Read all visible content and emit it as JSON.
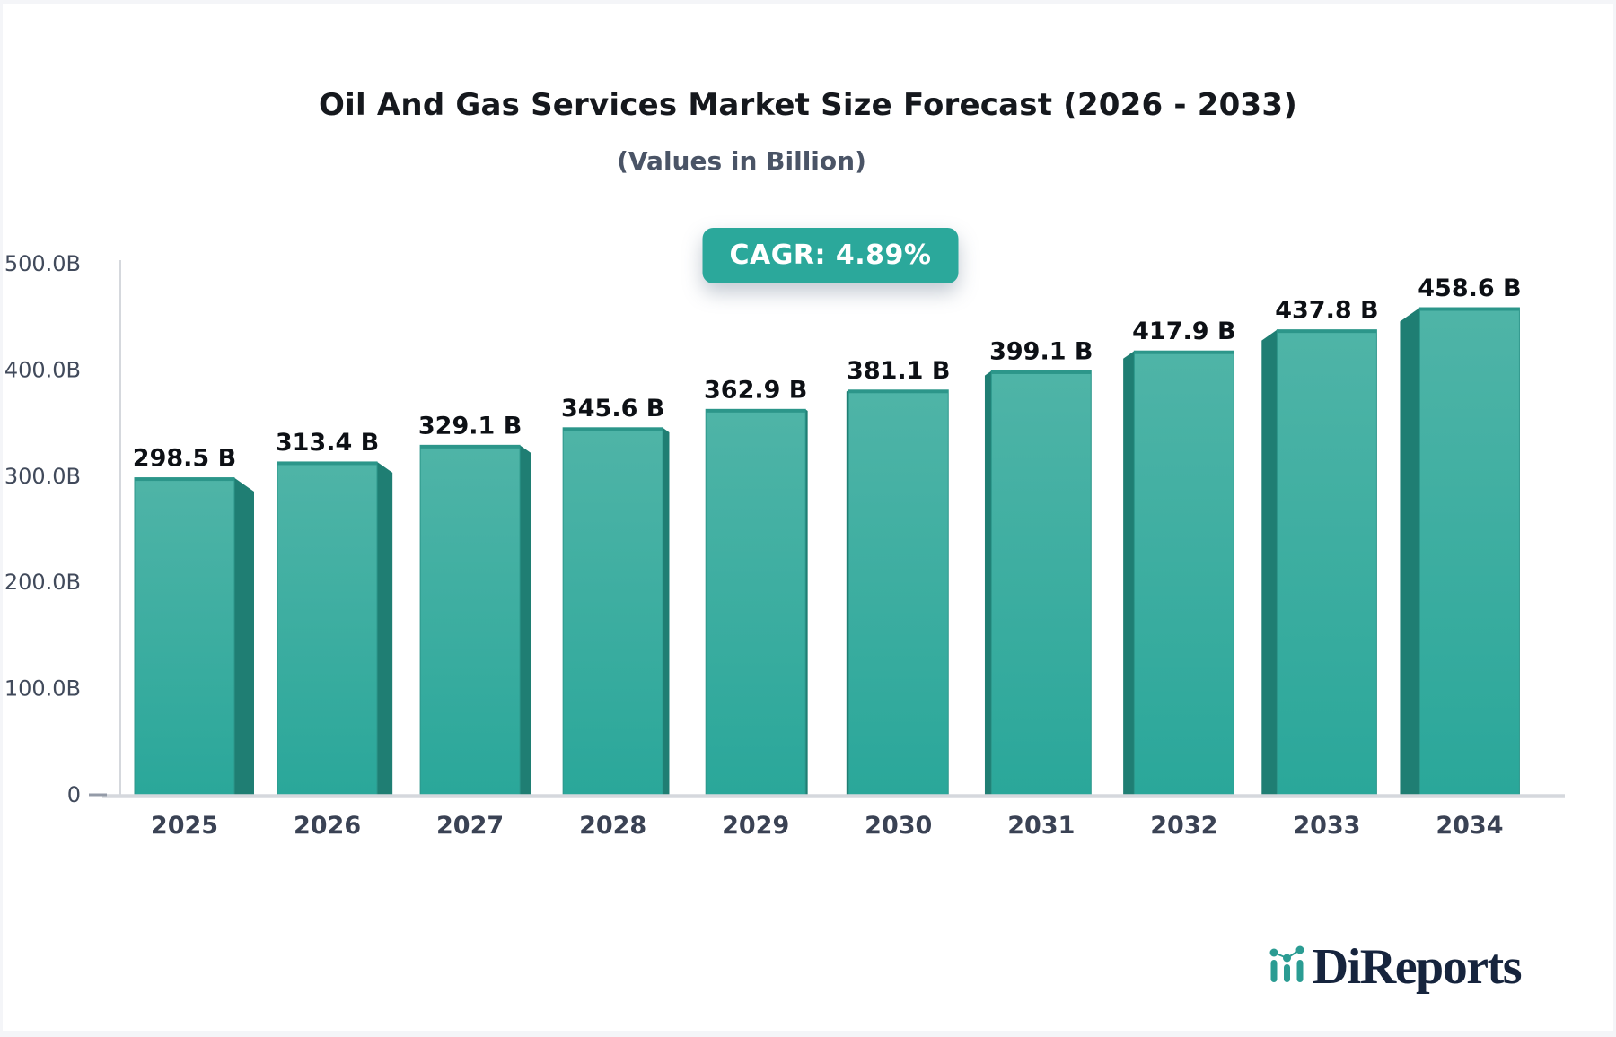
{
  "title": "Oil And Gas Services Market Size Forecast (2026 - 2033)",
  "subtitle": "(Values in Billion)",
  "cagr_badge": "CAGR: 4.89%",
  "logo": {
    "text": "DiReports"
  },
  "colors": {
    "accent_teal": "#2ba89b",
    "bar_face_top": "#4fb4a7",
    "bar_face_bottom": "#2aa79a",
    "bar_side": "#1f7e73",
    "bar_edge": "#2c968a",
    "axis_line": "#d5d8dd",
    "zero_tick": "#949ba8",
    "logo_navy": "#16243d",
    "logo_teal": "#2b9c93"
  },
  "chart_data": {
    "type": "bar",
    "title": "Oil And Gas Services Market Size Forecast (2026 - 2033)",
    "subtitle": "(Values in Billion)",
    "xlabel": "",
    "ylabel": "",
    "categories": [
      "2025",
      "2026",
      "2027",
      "2028",
      "2029",
      "2030",
      "2031",
      "2032",
      "2033",
      "2034"
    ],
    "values": [
      298.5,
      313.4,
      329.1,
      345.6,
      362.9,
      381.1,
      399.1,
      417.9,
      437.8,
      458.6
    ],
    "value_labels": [
      "298.5 B",
      "313.4 B",
      "329.1 B",
      "345.6 B",
      "362.9 B",
      "381.1 B",
      "399.1 B",
      "417.9 B",
      "437.8 B",
      "458.6 B"
    ],
    "ylim": [
      0,
      500
    ],
    "y_ticks": [
      {
        "value": 500,
        "label": "500.0B"
      },
      {
        "value": 400,
        "label": "400.0B"
      },
      {
        "value": 300,
        "label": "300.0B"
      },
      {
        "value": 200,
        "label": "200.0B"
      },
      {
        "value": 100,
        "label": "100.0B"
      },
      {
        "value": 0,
        "label": "0"
      }
    ],
    "grid": false,
    "legend": "none",
    "style": "3d-perspective-bars"
  }
}
